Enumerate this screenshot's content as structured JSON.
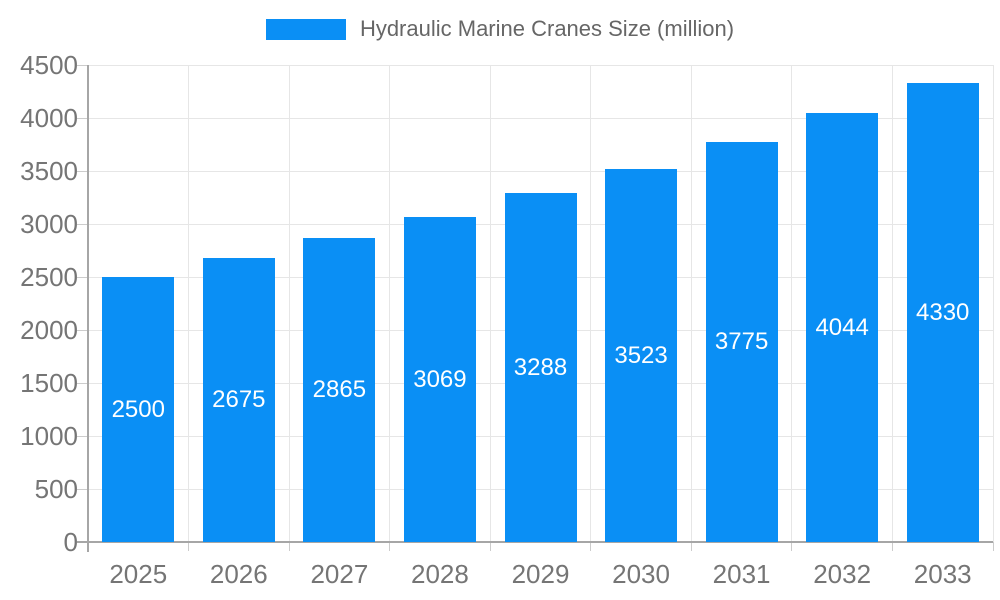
{
  "chart_data": {
    "type": "bar",
    "title": "Hydraulic Marine Cranes Size (million)",
    "categories": [
      "2025",
      "2026",
      "2027",
      "2028",
      "2029",
      "2030",
      "2031",
      "2032",
      "2033"
    ],
    "values": [
      2500,
      2675,
      2865,
      3069,
      3288,
      3523,
      3775,
      4044,
      4330
    ],
    "xlabel": "",
    "ylabel": "",
    "ylim": [
      0,
      4500
    ],
    "ytick_step": 500,
    "ytick_labels": [
      "0",
      "500",
      "1000",
      "1500",
      "2000",
      "2500",
      "3000",
      "3500",
      "4000",
      "4500"
    ],
    "grid": true,
    "legend_position": "top-center",
    "value_labels_shown": true
  },
  "colors": {
    "bar_fill": "#0a8ff5",
    "bar_value_text": "#ffffff",
    "axis_line": "#a6a6a6",
    "gridline": "#e6e6e6",
    "tick_mark": "#cccccc",
    "tick_text": "#757575",
    "legend_text": "#666666"
  }
}
